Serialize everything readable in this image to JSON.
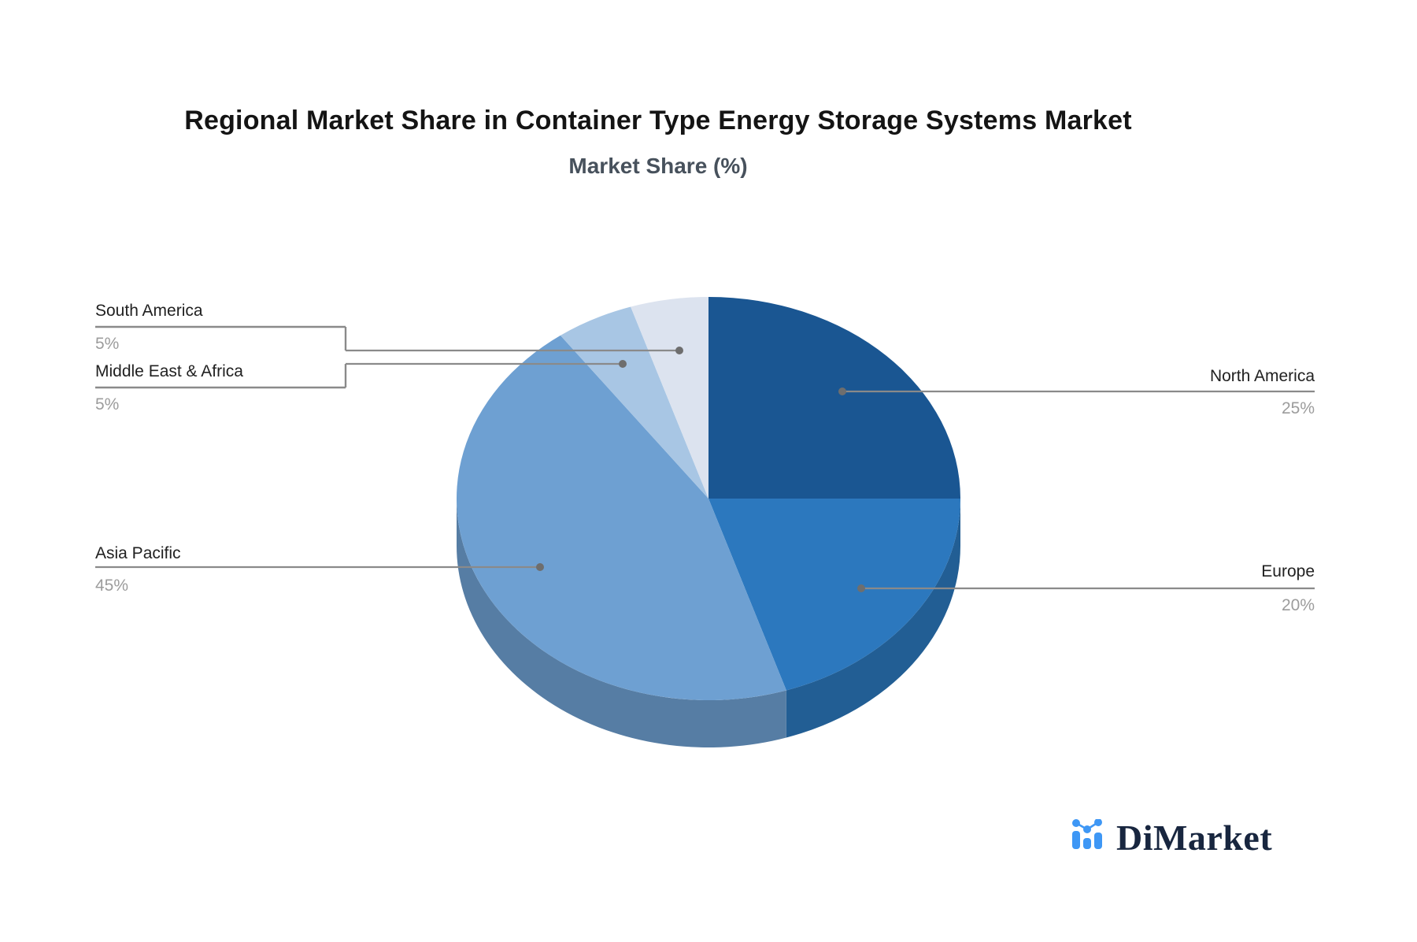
{
  "header": {
    "title": "Regional Market Share in Container Type Energy Storage Systems Market",
    "subtitle": "Market Share (%)"
  },
  "chart_data": {
    "type": "pie",
    "style": "pie-3d",
    "title": "Regional Market Share in Container Type Energy Storage Systems Market",
    "subtitle": "Market Share (%)",
    "unit": "%",
    "start_angle_deg": 0,
    "direction": "clockwise",
    "legend_position": "callout-labels",
    "slices": [
      {
        "label": "North America",
        "value": 25,
        "display": "25%",
        "color": "#1A5692"
      },
      {
        "label": "Europe",
        "value": 20,
        "display": "20%",
        "color": "#2C78BE"
      },
      {
        "label": "Asia Pacific",
        "value": 45,
        "display": "45%",
        "color": "#6EA0D2"
      },
      {
        "label": "Middle East & Africa",
        "value": 5,
        "display": "5%",
        "color": "#A8C6E4"
      },
      {
        "label": "South America",
        "value": 5,
        "display": "5%",
        "color": "#DCE3EF"
      }
    ]
  },
  "branding": {
    "logo_text": "DiMarket",
    "logo_icon": "bar-line-chart-icon",
    "logo_text_color": "#18263F",
    "logo_icon_color": "#3E97F5"
  }
}
